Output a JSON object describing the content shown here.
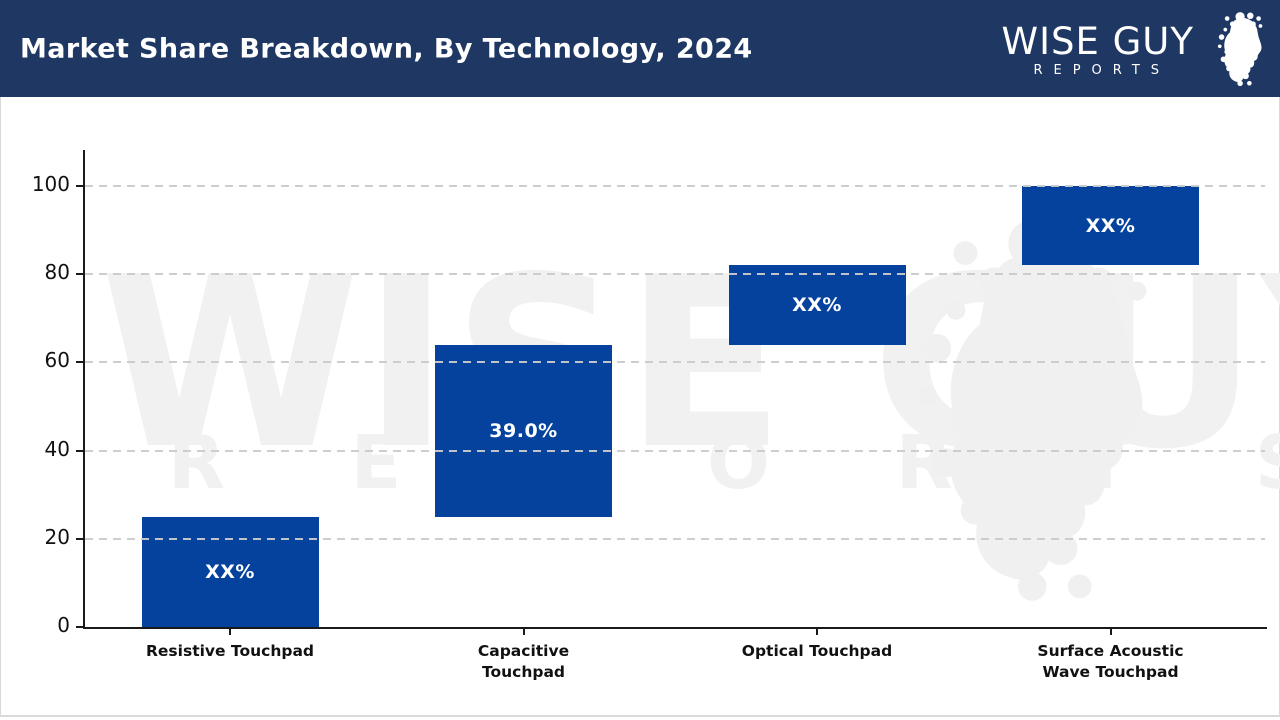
{
  "header": {
    "title": "Market Share Breakdown, By Technology, 2024",
    "bg_color": "#1f3763",
    "logo": {
      "line1": "WISE GUY",
      "line2": "REPORTS"
    }
  },
  "watermark": {
    "line1": "WISE GUY",
    "line2": "R E P O R T S"
  },
  "chart_data": {
    "type": "bar",
    "subtype": "floating-waterfall",
    "title": "Market Share Breakdown, By Technology, 2024",
    "categories": [
      "Resistive Touchpad",
      "Capacitive\nTouchpad",
      "Optical Touchpad",
      "Surface Acoustic\nWave Touchpad"
    ],
    "segments": [
      {
        "category": "Resistive Touchpad",
        "start": 0,
        "end": 25,
        "label": "XX%"
      },
      {
        "category": "Capacitive Touchpad",
        "start": 25,
        "end": 64,
        "label": "39.0%"
      },
      {
        "category": "Optical Touchpad",
        "start": 64,
        "end": 82,
        "label": "XX%"
      },
      {
        "category": "Surface Acoustic Wave Touchpad",
        "start": 82,
        "end": 100,
        "label": "XX%"
      }
    ],
    "values": [
      25,
      39,
      18,
      18
    ],
    "xlabel": "",
    "ylabel": "",
    "ylim": [
      0,
      100
    ],
    "yticks": [
      0,
      20,
      40,
      60,
      80,
      100
    ],
    "grid": "horizontal-dashed",
    "legend": "none",
    "bar_color": "#05429d",
    "bar_label_color": "#ffffff",
    "gridline_color": "#cbcbcb",
    "axis_color": "#1a1a1a"
  }
}
